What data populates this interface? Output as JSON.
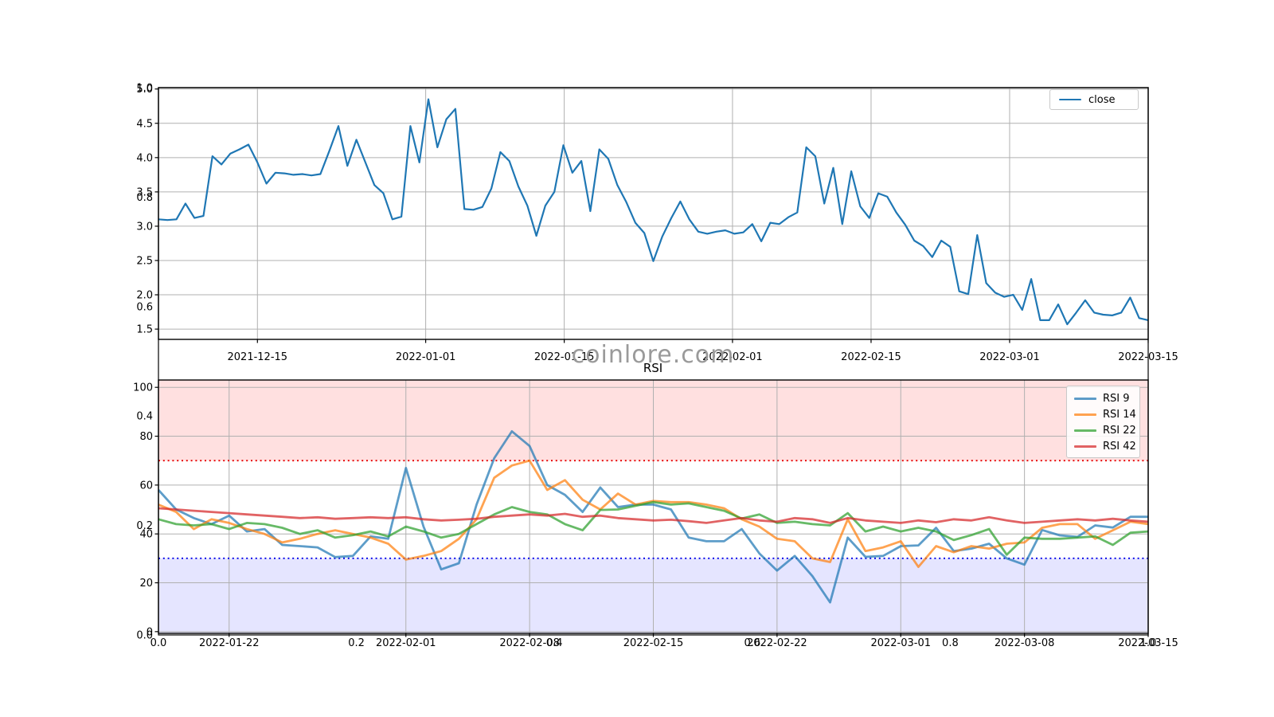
{
  "watermark": {
    "text": "coinlore.com",
    "color": "#9a9a9a"
  },
  "hidden_axis": {
    "xticks": [
      {
        "label": "0.0",
        "f": 0.0
      },
      {
        "label": "0.2",
        "f": 0.2
      },
      {
        "label": "0.4",
        "f": 0.4
      },
      {
        "label": "0.6",
        "f": 0.6
      },
      {
        "label": "0.8",
        "f": 0.8
      },
      {
        "label": "1.0",
        "f": 1.0
      }
    ],
    "yticks": [
      {
        "label": "1.0",
        "f": 0.0
      },
      {
        "label": "0.8",
        "f": 0.2
      },
      {
        "label": "0.6",
        "f": 0.4
      },
      {
        "label": "0.4",
        "f": 0.6
      },
      {
        "label": "0.2",
        "f": 0.8
      },
      {
        "label": "0.0",
        "f": 1.0
      }
    ]
  },
  "chart_data": [
    {
      "type": "line",
      "title": "",
      "x_range": [
        "2021-12-05",
        "2022-03-15"
      ],
      "ylim": [
        1.35,
        5.02
      ],
      "grid": true,
      "legend_position": "upper right",
      "yticks": [
        {
          "label": "5.0",
          "v": 5.0
        },
        {
          "label": "4.5",
          "v": 4.5
        },
        {
          "label": "4.0",
          "v": 4.0
        },
        {
          "label": "3.5",
          "v": 3.5
        },
        {
          "label": "3.0",
          "v": 3.0
        },
        {
          "label": "2.5",
          "v": 2.5
        },
        {
          "label": "2.0",
          "v": 2.0
        },
        {
          "label": "1.5",
          "v": 1.5
        }
      ],
      "xticks": [
        {
          "label": "2021-12-15",
          "f": 0.1
        },
        {
          "label": "2022-01-01",
          "f": 0.27
        },
        {
          "label": "2022-01-15",
          "f": 0.41
        },
        {
          "label": "2022-02-01",
          "f": 0.58
        },
        {
          "label": "2022-02-15",
          "f": 0.72
        },
        {
          "label": "2022-03-01",
          "f": 0.86
        },
        {
          "label": "2022-03-15",
          "f": 1.0
        }
      ],
      "series": [
        {
          "name": "close",
          "color": "#1f77b4",
          "width": 2.2,
          "values": [
            3.1,
            3.09,
            3.1,
            3.33,
            3.12,
            3.15,
            4.02,
            3.9,
            4.06,
            4.12,
            4.19,
            3.93,
            3.62,
            3.78,
            3.77,
            3.75,
            3.76,
            3.74,
            3.76,
            4.1,
            4.46,
            3.88,
            4.26,
            3.93,
            3.6,
            3.48,
            3.1,
            3.14,
            4.46,
            3.93,
            4.85,
            4.15,
            4.56,
            4.71,
            3.25,
            3.24,
            3.28,
            3.55,
            4.08,
            3.95,
            3.58,
            3.3,
            2.86,
            3.3,
            3.5,
            4.18,
            3.78,
            3.95,
            3.22,
            4.12,
            3.98,
            3.6,
            3.35,
            3.05,
            2.9,
            2.49,
            2.85,
            3.12,
            3.36,
            3.1,
            2.92,
            2.89,
            2.92,
            2.94,
            2.89,
            2.91,
            3.03,
            2.78,
            3.05,
            3.03,
            3.13,
            3.2,
            4.15,
            4.02,
            3.33,
            3.85,
            3.03,
            3.8,
            3.29,
            3.12,
            3.48,
            3.43,
            3.2,
            3.02,
            2.79,
            2.71,
            2.55,
            2.79,
            2.7,
            2.05,
            2.01,
            2.87,
            2.17,
            2.03,
            1.97,
            2.0,
            1.78,
            2.23,
            1.63,
            1.63,
            1.86,
            1.57,
            1.74,
            1.92,
            1.74,
            1.71,
            1.7,
            1.74,
            1.96,
            1.66,
            1.63
          ]
        }
      ]
    },
    {
      "type": "line",
      "title": "RSI",
      "x_range": [
        "2022-01-18",
        "2022-03-15"
      ],
      "ylim": [
        -0.7,
        103
      ],
      "grid": true,
      "legend_position": "upper right",
      "overbought": {
        "level": 70,
        "band_color": "rgba(255,0,0,0.12)",
        "line_color": "#e60000"
      },
      "oversold": {
        "level": 30,
        "band_color": "rgba(0,0,255,0.10)",
        "line_color": "#0000e6"
      },
      "yticks": [
        {
          "label": "100",
          "v": 100
        },
        {
          "label": "80",
          "v": 80
        },
        {
          "label": "60",
          "v": 60
        },
        {
          "label": "40",
          "v": 40
        },
        {
          "label": "20",
          "v": 20
        },
        {
          "label": "0",
          "v": 0
        }
      ],
      "xticks": [
        {
          "label": "2022-01-22",
          "f": 0.0714
        },
        {
          "label": "2022-02-01",
          "f": 0.25
        },
        {
          "label": "2022-02-08",
          "f": 0.375
        },
        {
          "label": "2022-02-15",
          "f": 0.5
        },
        {
          "label": "2022-02-22",
          "f": 0.625
        },
        {
          "label": "2022-03-01",
          "f": 0.75
        },
        {
          "label": "2022-03-08",
          "f": 0.875
        },
        {
          "label": "2022-03-15",
          "f": 1.0
        }
      ],
      "series": [
        {
          "name": "RSI 9",
          "color": "rgba(31,119,180,0.72)",
          "width": 2.8,
          "values": [
            58,
            50,
            46.5,
            44,
            47.5,
            41,
            42,
            35.5,
            35,
            34.5,
            30.5,
            31,
            39,
            38,
            67,
            43,
            25.5,
            28,
            52,
            71,
            82,
            76,
            60,
            56,
            49,
            59,
            51,
            52,
            52,
            50,
            38.5,
            37,
            37,
            42,
            32,
            25,
            31,
            22.7,
            12,
            38.5,
            30.6,
            31,
            35,
            35.3,
            42.5,
            33,
            34,
            36,
            30,
            27.4,
            41.6,
            39.4,
            38.8,
            43.5,
            42.6,
            47,
            47
          ]
        },
        {
          "name": "RSI 14",
          "color": "rgba(255,127,14,0.72)",
          "width": 2.8,
          "values": [
            52,
            49,
            42,
            46,
            44.5,
            42,
            40,
            36.5,
            38,
            40,
            41.5,
            40,
            38.5,
            36,
            29.5,
            31,
            33,
            38,
            46,
            63,
            68,
            70,
            58,
            62,
            54,
            50,
            56.5,
            52,
            53.5,
            53,
            53,
            52,
            50.5,
            46,
            43,
            38,
            37,
            30,
            28.5,
            46,
            33,
            34.5,
            37,
            26.5,
            35,
            32.5,
            35,
            34,
            36,
            36.5,
            42.5,
            44,
            44,
            38,
            41.5,
            45,
            44
          ]
        },
        {
          "name": "RSI 22",
          "color": "rgba(44,160,44,0.72)",
          "width": 2.8,
          "values": [
            46,
            44,
            43.5,
            44,
            42,
            44.5,
            44,
            42.5,
            40,
            41.5,
            38.5,
            39.5,
            41,
            39,
            43,
            41,
            38.5,
            40,
            44,
            48,
            51,
            49,
            48,
            44,
            41.5,
            49.8,
            50,
            51.5,
            53,
            52,
            52.5,
            51,
            49.5,
            46.3,
            48,
            44.5,
            45,
            44,
            43.5,
            48.5,
            41,
            43,
            41,
            42.5,
            41,
            37.5,
            39.5,
            42,
            31.5,
            38.5,
            38,
            38,
            38.5,
            39,
            35.5,
            40.5,
            41
          ]
        },
        {
          "name": "RSI 42",
          "color": "rgba(214,39,40,0.72)",
          "width": 2.8,
          "values": [
            50.5,
            50,
            49.5,
            49,
            48.5,
            48,
            47.5,
            47,
            46.5,
            46.8,
            46.2,
            46.5,
            46.8,
            46.5,
            46.8,
            46,
            45.5,
            45.8,
            46.2,
            47,
            47.5,
            48,
            47.5,
            48.2,
            47,
            47.5,
            46.5,
            46,
            45.5,
            45.8,
            45.2,
            44.5,
            45.5,
            46.5,
            45.5,
            45,
            46.5,
            46,
            44.5,
            46.5,
            45.5,
            45,
            44.5,
            45.5,
            44.8,
            46,
            45.5,
            46.8,
            45.5,
            44.5,
            45,
            45.5,
            46,
            45.5,
            46.2,
            45.5,
            45
          ]
        }
      ]
    }
  ]
}
